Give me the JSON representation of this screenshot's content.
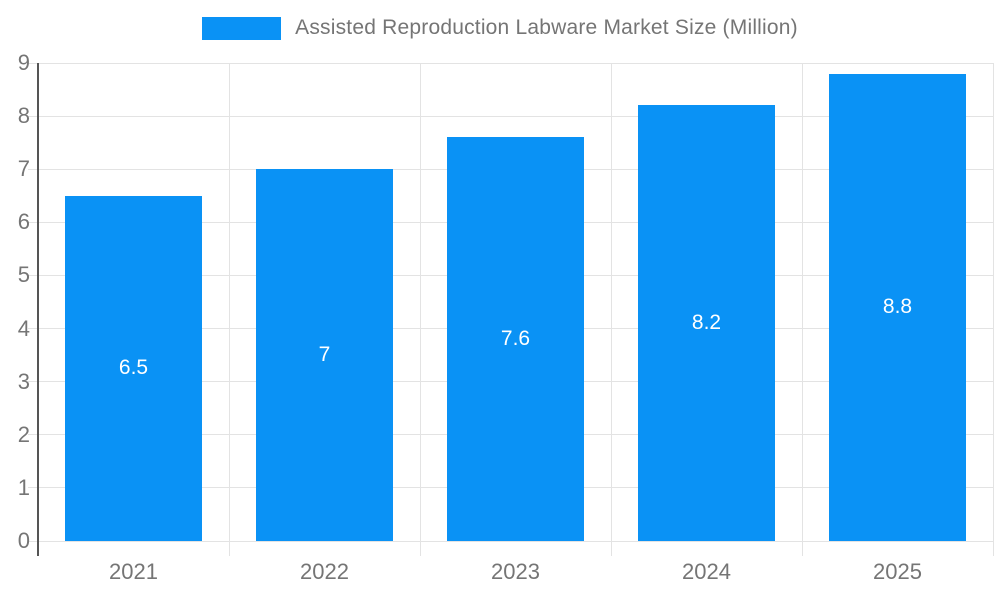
{
  "chart_data": {
    "type": "bar",
    "title": "Assisted Reproduction Labware Market Size (Million)",
    "categories": [
      "2021",
      "2022",
      "2023",
      "2024",
      "2025"
    ],
    "values": [
      6.5,
      7,
      7.6,
      8.2,
      8.8
    ],
    "value_labels": [
      "6.5",
      "7",
      "7.6",
      "8.2",
      "8.8"
    ],
    "xlabel": "",
    "ylabel": "",
    "ylim": [
      0,
      9
    ],
    "yticks": [
      0,
      1,
      2,
      3,
      4,
      5,
      6,
      7,
      8,
      9
    ],
    "ytick_labels": [
      "0",
      "1",
      "2",
      "3",
      "4",
      "5",
      "6",
      "7",
      "8",
      "9"
    ],
    "grid": true,
    "legend_position": "top",
    "legend_entries": [
      "Assisted Reproduction Labware Market Size (Million)"
    ],
    "colors": {
      "bar": "#0a92f5",
      "grid": "#e3e3e3",
      "axis_line": "#555555",
      "tick_label": "#757575",
      "legend_text": "#757575",
      "value_label": "#ffffff",
      "background": "#ffffff"
    }
  }
}
